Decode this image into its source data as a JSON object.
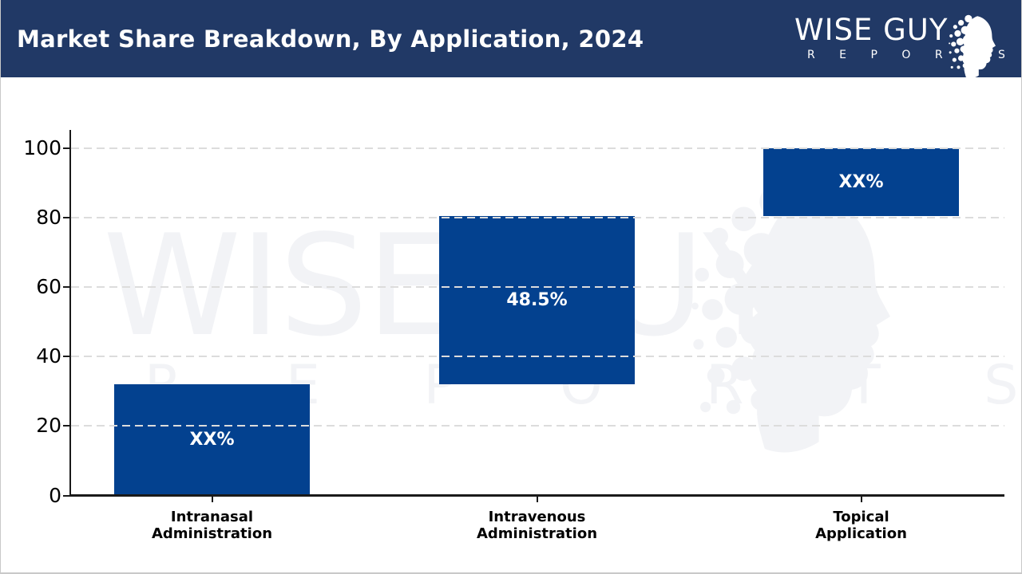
{
  "header": {
    "title": "Market Share Breakdown, By Application, 2024",
    "logo": {
      "brand": "WISE GUY",
      "sub": "R E P O R T S"
    }
  },
  "watermark": {
    "line1": "WISE GUY",
    "line2": "R E P O R T S"
  },
  "colors": {
    "header_bg": "#213966",
    "bar_blue": "#03418f",
    "gridline": "#dcdcdc",
    "axis": "#1a1a1a",
    "watermark": "#f2f3f6",
    "bar_label_text": "#ffffff",
    "page_border": "#c9c9c9"
  },
  "chart_data": {
    "type": "bar",
    "subtype": "waterfall",
    "title": "Market Share Breakdown, By Application, 2024",
    "categories": [
      "Intranasal Administration",
      "Intravenous Administration",
      "Topical Application"
    ],
    "categories_lines": [
      [
        "Intranasal",
        "Administration"
      ],
      [
        "Intravenous",
        "Administration"
      ],
      [
        "Topical",
        "Application"
      ]
    ],
    "segments": [
      {
        "category": "Intranasal Administration",
        "start": 0,
        "end": 32,
        "value_label": "XX%"
      },
      {
        "category": "Intravenous Administration",
        "start": 32,
        "end": 80.5,
        "value_label": "48.5%"
      },
      {
        "category": "Topical Application",
        "start": 80.5,
        "end": 100,
        "value_label": "XX%"
      }
    ],
    "ylim": [
      0,
      100
    ],
    "yticks": [
      0,
      20,
      40,
      60,
      80,
      100
    ],
    "xlabel": "",
    "ylabel": "",
    "grid": "horizontal-dashed",
    "legend": "none",
    "bar_color": "#03418f"
  }
}
